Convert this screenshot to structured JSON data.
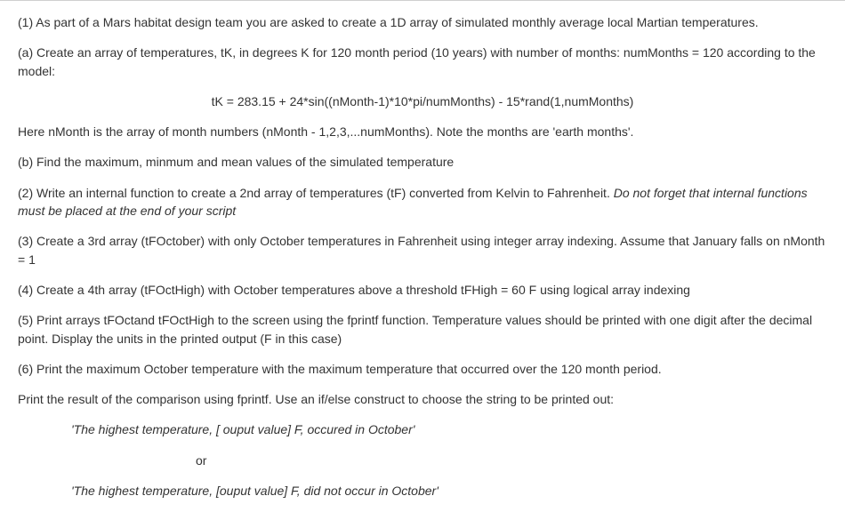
{
  "p1": "(1) As part of a Mars habitat design team you are asked to create  a 1D array of simulated monthly average local Martian temperatures.",
  "p1a": "(a) Create an array of temperatures, tK, in degrees K for 120 month period (10 years) with number of months: numMonths = 120 according to the model:",
  "formula": "tK = 283.15 + 24*sin((nMonth-1)*10*pi/numMonths) - 15*rand(1,numMonths)",
  "p1a_note": "Here nMonth is the array of month numbers (nMonth - 1,2,3,...numMonths). Note the months are 'earth months'.",
  "p1b": "(b) Find the maximum, minmum and mean values of the simulated temperature",
  "p2a": "(2) Write an internal function to create a 2nd array of temperatures (tF) converted from  Kelvin to Fahrenheit.  ",
  "p2b": "Do not forget that internal functions must be placed at the end of your script",
  "p3": "(3) Create a 3rd array (tFOctober) with only October temperatures in Fahrenheit using integer array indexing. Assume that January falls on nMonth = 1",
  "p4": "(4) Create a 4th array (tFOctHigh) with October temperatures above a threshold tFHigh = 60 F  using logical array indexing",
  "p5": "(5) Print arrays tFOctand tFOctHigh to the screen using the fprintf function. Temperature values should be printed with one digit after the decimal point. Display the units in the printed output (F in this case)",
  "p6": "(6) Print the maximum October temperature with the maximum temperature that occurred over the 120 month period.",
  "p6a": "Print the result of the comparison using fprintf.  Use an if/else construct to choose the string to be printed out:",
  "opt1": "'The highest temperature, [ ouput value] F, occured in October'",
  "or": "or",
  "opt2": "'The highest temperature, [ouput value] F, did not occur in October'"
}
